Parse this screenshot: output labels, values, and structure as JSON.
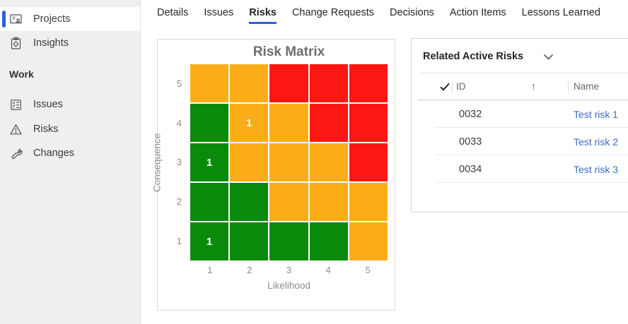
{
  "colors": {
    "accent_blue": "#2a62dd",
    "link_blue": "#3a6cc0",
    "sidebar_bg": "#efefef",
    "matrix_green": "#0a8a0a",
    "matrix_orange": "#fbad18",
    "matrix_red": "#fd1712"
  },
  "sidebar": {
    "items": [
      {
        "label": "Projects",
        "icon": "projects-icon",
        "active": true
      },
      {
        "label": "Insights",
        "icon": "insights-icon",
        "active": false
      }
    ],
    "section": "Work",
    "work_items": [
      {
        "label": "Issues",
        "icon": "issues-checklist-icon"
      },
      {
        "label": "Risks",
        "icon": "warning-triangle-icon"
      },
      {
        "label": "Changes",
        "icon": "wrench-icon"
      }
    ]
  },
  "tabs": [
    {
      "label": "Details",
      "active": false
    },
    {
      "label": "Issues",
      "active": false
    },
    {
      "label": "Risks",
      "active": true
    },
    {
      "label": "Change Requests",
      "active": false
    },
    {
      "label": "Decisions",
      "active": false
    },
    {
      "label": "Action Items",
      "active": false
    },
    {
      "label": "Lessons Learned",
      "active": false
    }
  ],
  "chart_data": {
    "type": "heatmap",
    "title": "Risk Matrix",
    "xlabel": "Likelihood",
    "ylabel": "Consequence",
    "x_ticks": [
      "1",
      "2",
      "3",
      "4",
      "5"
    ],
    "y_ticks": [
      "5",
      "4",
      "3",
      "2",
      "1"
    ],
    "palette": {
      "green": "#0a8a0a",
      "orange": "#fbad18",
      "red": "#fd1712"
    },
    "grid": [
      [
        "orange",
        "orange",
        "red",
        "red",
        "red"
      ],
      [
        "green",
        "orange",
        "orange",
        "red",
        "red"
      ],
      [
        "green",
        "orange",
        "orange",
        "orange",
        "red"
      ],
      [
        "green",
        "green",
        "orange",
        "orange",
        "orange"
      ],
      [
        "green",
        "green",
        "green",
        "green",
        "orange"
      ]
    ],
    "labels": [
      [
        null,
        null,
        null,
        null,
        null
      ],
      [
        null,
        "1",
        null,
        null,
        null
      ],
      [
        "1",
        null,
        null,
        null,
        null
      ],
      [
        null,
        null,
        null,
        null,
        null
      ],
      [
        "1",
        null,
        null,
        null,
        null
      ]
    ],
    "data_labels": [
      {
        "likelihood": 2,
        "consequence": 4,
        "count": 1
      },
      {
        "likelihood": 1,
        "consequence": 3,
        "count": 1
      },
      {
        "likelihood": 1,
        "consequence": 1,
        "count": 1
      }
    ]
  },
  "related_risks": {
    "title": "Related Active Risks",
    "columns": {
      "id": "ID",
      "name": "Name"
    },
    "sort_icon": "↑",
    "rows": [
      {
        "id": "0032",
        "name": "Test risk 1"
      },
      {
        "id": "0033",
        "name": "Test risk 2"
      },
      {
        "id": "0034",
        "name": "Test risk 3"
      }
    ]
  }
}
